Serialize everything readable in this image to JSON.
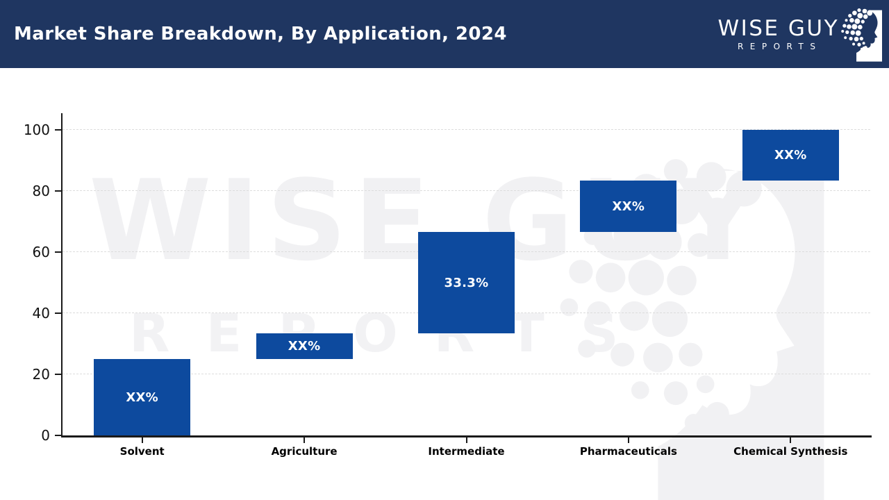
{
  "header": {
    "title": "Market Share Breakdown, By Application, 2024",
    "background_color": "#1f3661",
    "logo": {
      "line1": "WISE GUY",
      "line2": "REPORTS"
    }
  },
  "watermark": {
    "line1": "WISE GUY",
    "line2": "REPORTS"
  },
  "chart_data": {
    "type": "bar",
    "subtype": "waterfall",
    "title": "Market Share Breakdown, By Application, 2024",
    "categories": [
      "Solvent",
      "Agriculture",
      "Intermediate",
      "Pharmaceuticals",
      "Chemical Synthesis"
    ],
    "bars": [
      {
        "category": "Solvent",
        "start": 0,
        "end": 25,
        "label": "XX%"
      },
      {
        "category": "Agriculture",
        "start": 25,
        "end": 33.3,
        "label": "XX%"
      },
      {
        "category": "Intermediate",
        "start": 33.3,
        "end": 66.6,
        "label": "33.3%"
      },
      {
        "category": "Pharmaceuticals",
        "start": 66.6,
        "end": 83.3,
        "label": "XX%"
      },
      {
        "category": "Chemical Synthesis",
        "start": 83.3,
        "end": 100,
        "label": "XX%"
      }
    ],
    "xlabel": "",
    "ylabel": "",
    "ylim": [
      0,
      100
    ],
    "yticks": [
      0,
      20,
      40,
      60,
      80,
      100
    ],
    "grid": "horizontal-dashed",
    "legend": "none",
    "bar_color": "#0d4a9e",
    "bar_label_color": "#ffffff",
    "grid_color": "#dcdcdc",
    "axis_color": "#1a1a1a"
  }
}
